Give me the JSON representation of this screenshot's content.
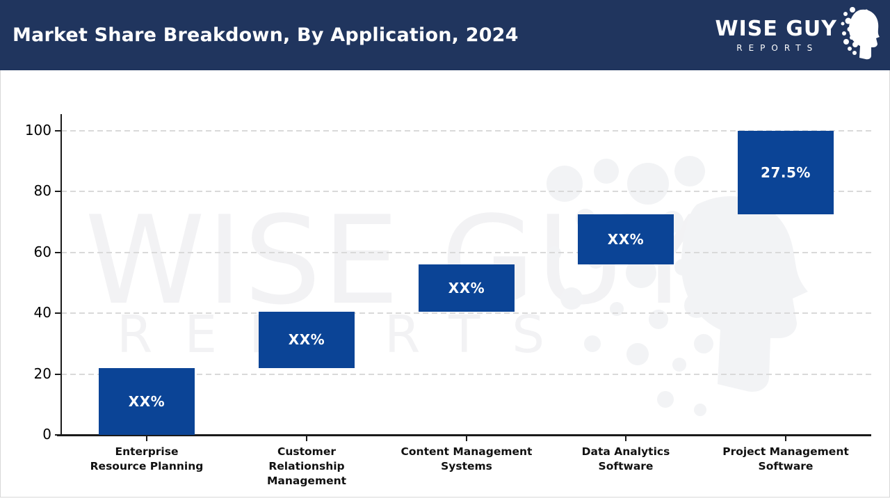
{
  "header": {
    "title": "Market Share Breakdown, By Application, 2024",
    "logo": {
      "wordmark": "WISE GUY",
      "sub": "REPORTS"
    }
  },
  "watermark": {
    "wordmark": "WISE GUY",
    "sub": "REPORTS"
  },
  "colors": {
    "header_bg": "#20355e",
    "bar": "#0b4496",
    "bar_label": "#ffffff",
    "grid": "#d9d9d9",
    "axis": "#1a1a1a",
    "watermark": "#f2f2f4"
  },
  "chart_data": {
    "type": "bar",
    "subtype": "waterfall",
    "title": "Market Share Breakdown, By Application, 2024",
    "categories": [
      "Enterprise\nResource Planning",
      "Customer\nRelationship\nManagement",
      "Content Management\nSystems",
      "Data Analytics\nSoftware",
      "Project Management\nSoftware"
    ],
    "values": [
      22,
      18.5,
      15.5,
      16.5,
      27.5
    ],
    "cumulative": [
      [
        0,
        22
      ],
      [
        22,
        40.5
      ],
      [
        40.5,
        56
      ],
      [
        56,
        72.5
      ],
      [
        72.5,
        100
      ]
    ],
    "bar_labels": [
      "XX%",
      "XX%",
      "XX%",
      "XX%",
      "27.5%"
    ],
    "xlabel": "",
    "ylabel": "",
    "ylim": [
      0,
      100
    ],
    "yticks": [
      0,
      20,
      40,
      60,
      80,
      100
    ],
    "grid": "horizontal-dashed",
    "legend": false
  }
}
